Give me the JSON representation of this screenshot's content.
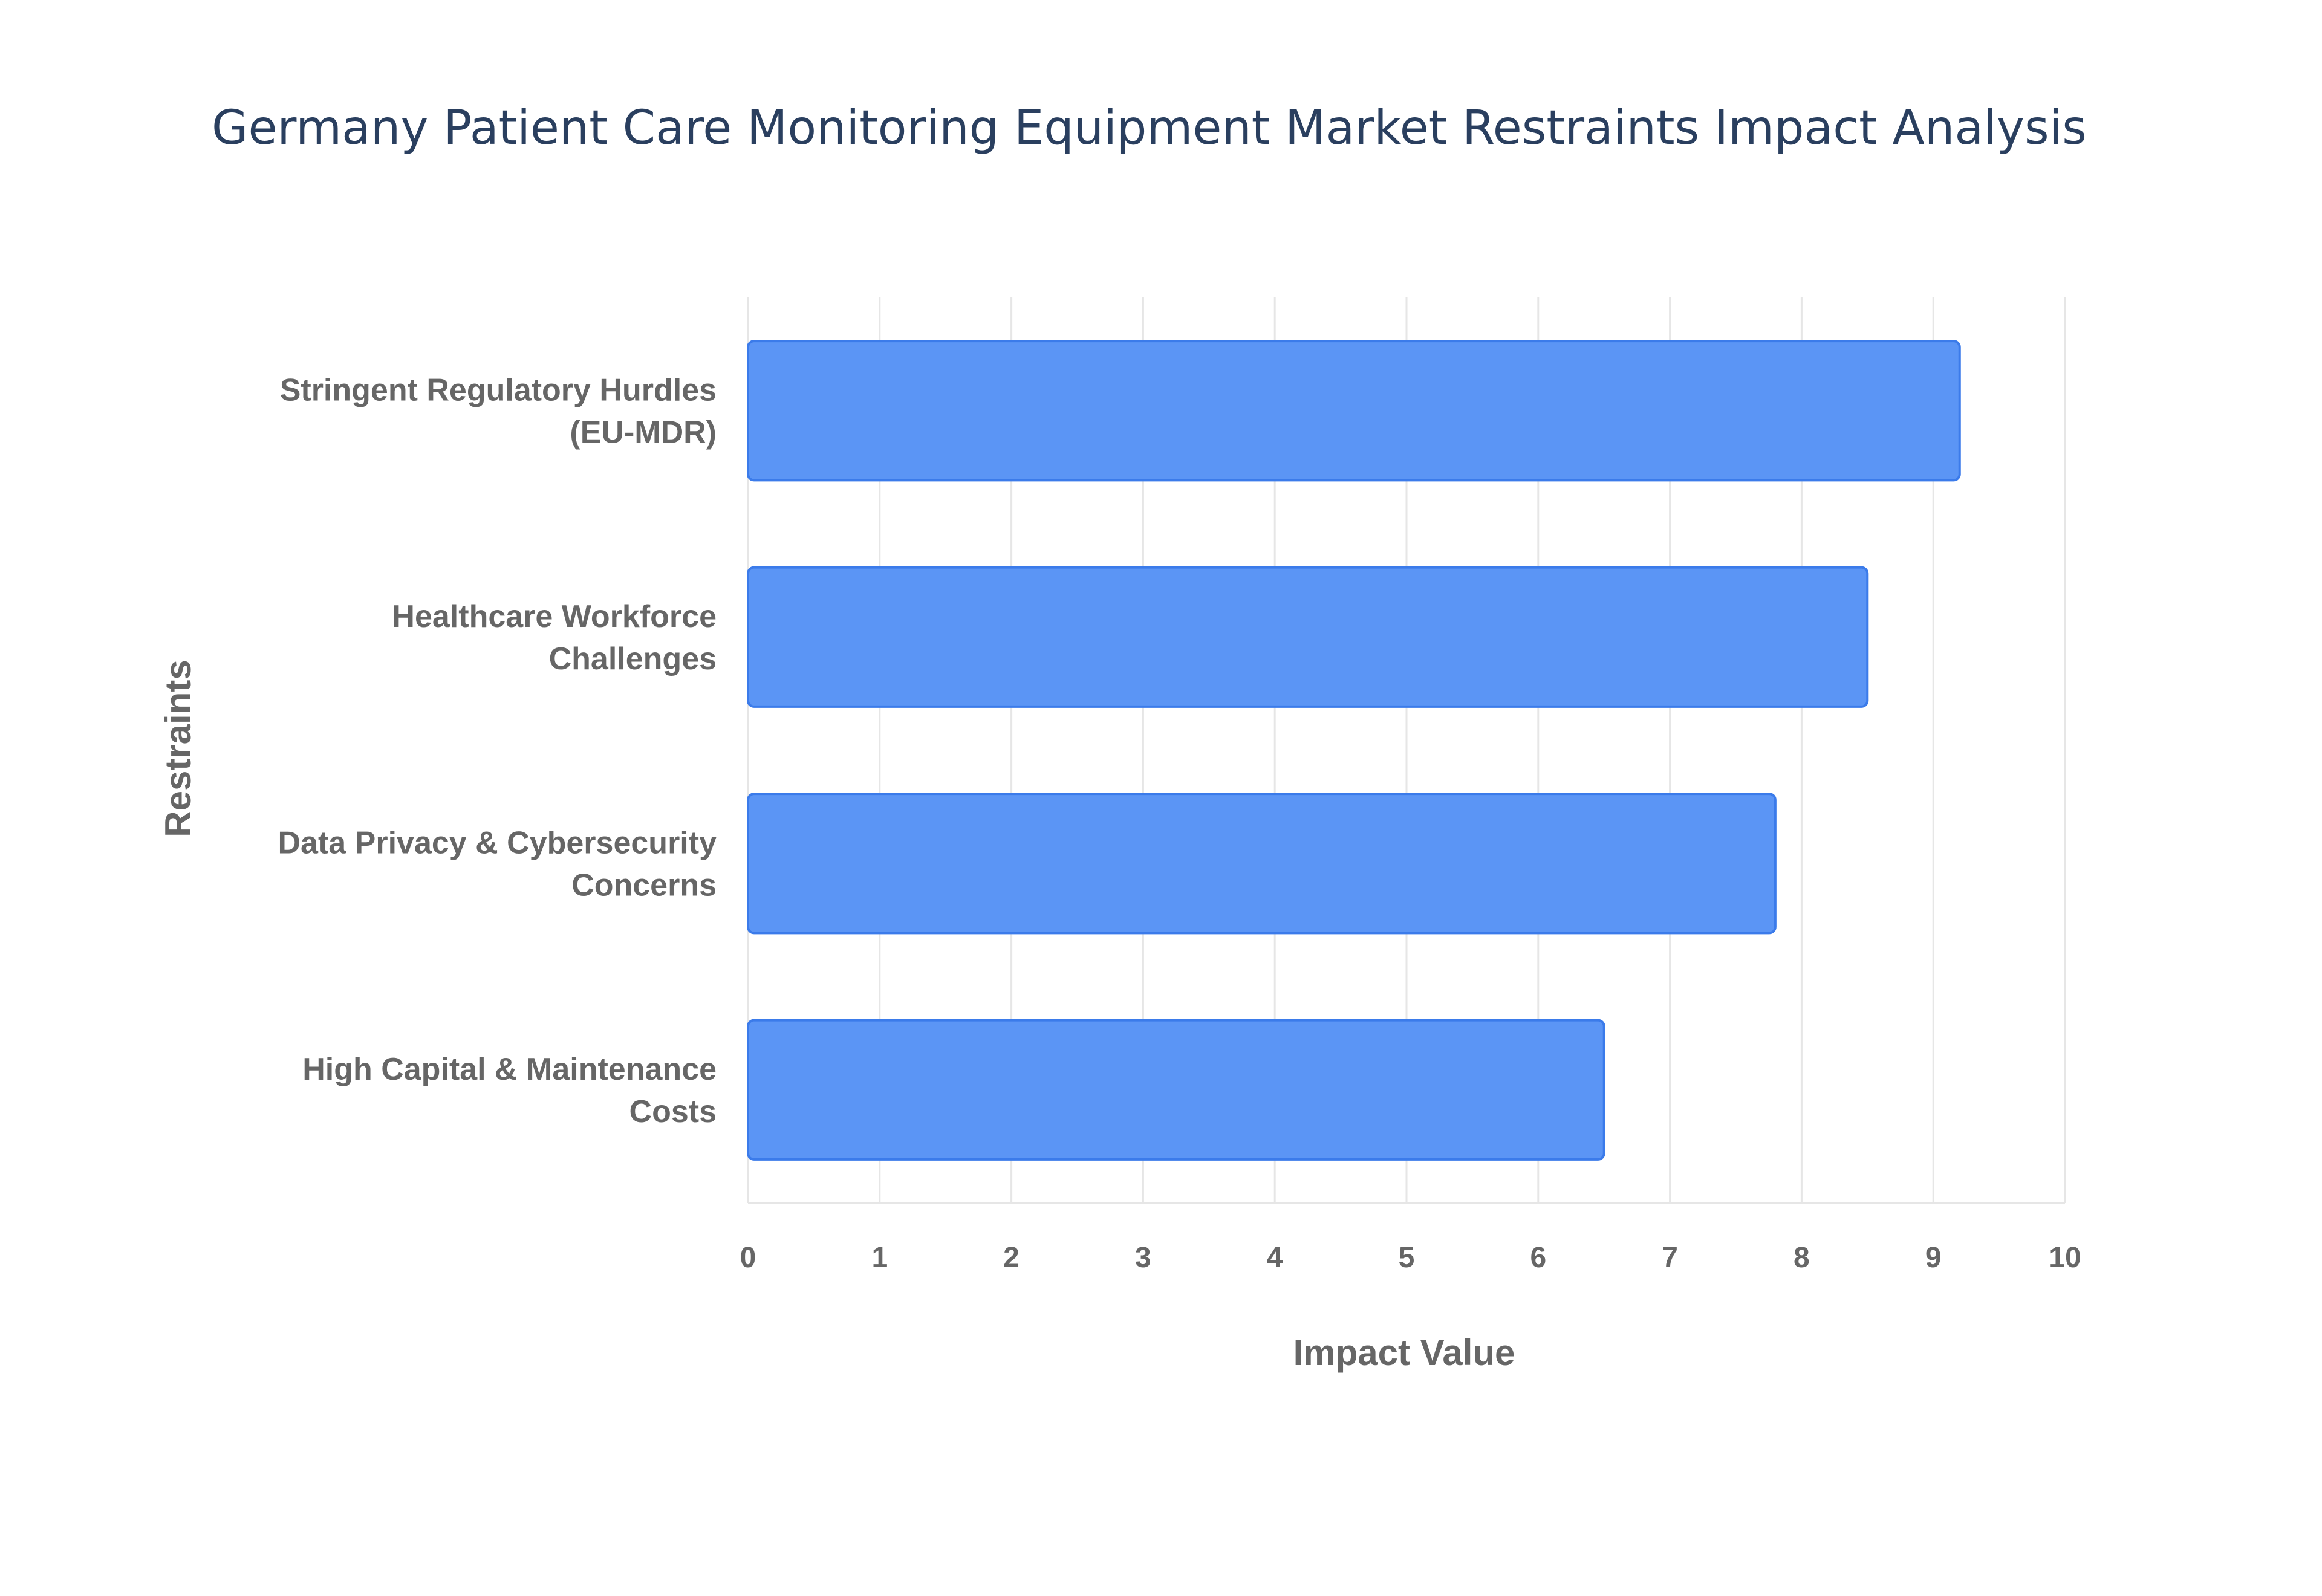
{
  "chart_data": {
    "type": "bar",
    "orientation": "horizontal",
    "title": "Germany Patient Care Monitoring Equipment Market Restraints Impact Analysis",
    "xlabel": "Impact Value",
    "ylabel": "Restraints",
    "xlim": [
      0,
      10
    ],
    "xticks": [
      "0",
      "1",
      "2",
      "3",
      "4",
      "5",
      "6",
      "7",
      "8",
      "9",
      "10"
    ],
    "grid": true,
    "legend": "none",
    "categories": [
      [
        "Stringent Regulatory Hurdles",
        "(EU-MDR)"
      ],
      [
        "Healthcare Workforce",
        "Challenges"
      ],
      [
        "Data Privacy & Cybersecurity",
        "Concerns"
      ],
      [
        "High Capital & Maintenance",
        "Costs"
      ]
    ],
    "values": [
      9.2,
      8.5,
      7.8,
      6.5
    ],
    "colors": {
      "bar_fill": "#5b95f5",
      "bar_stroke": "#3b7bea",
      "grid": "#e6e6e6",
      "title": "#2a3f5f",
      "label": "#666666"
    }
  }
}
